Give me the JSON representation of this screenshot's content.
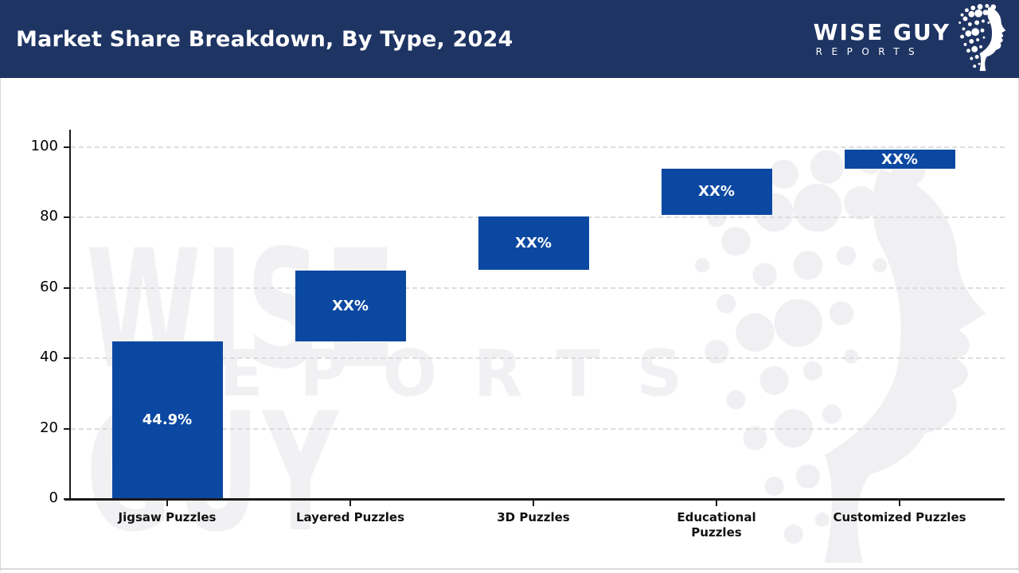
{
  "header": {
    "title": "Market Share Breakdown, By Type, 2024",
    "bg_color": "#1e3463",
    "logo": {
      "line1": "WISE GUY",
      "line2": "REPORTS"
    }
  },
  "watermark": {
    "line1": "WISE GUY",
    "line2": "REPORTS"
  },
  "chart_data": {
    "type": "bar",
    "subtype": "waterfall-floating-bars",
    "title": "Market Share Breakdown, By Type, 2024",
    "categories": [
      "Jigsaw Puzzles",
      "Layered Puzzles",
      "3D Puzzles",
      "Educational Puzzles",
      "Customized Puzzles"
    ],
    "tick_labels": [
      "Jigsaw Puzzles",
      "Layered Puzzles",
      "3D Puzzles",
      "Educational\nPuzzles",
      "Customized Puzzles"
    ],
    "bars": [
      {
        "category": "Jigsaw Puzzles",
        "start": 0,
        "end": 44.9,
        "label": "44.9%"
      },
      {
        "category": "Layered Puzzles",
        "start": 44.9,
        "end": 65.0,
        "label": "XX%"
      },
      {
        "category": "3D Puzzles",
        "start": 65.2,
        "end": 80.4,
        "label": "XX%"
      },
      {
        "category": "Educational Puzzles",
        "start": 80.8,
        "end": 93.9,
        "label": "XX%"
      },
      {
        "category": "Customized Puzzles",
        "start": 93.9,
        "end": 99.3,
        "label": "XX%"
      }
    ],
    "y_ticks": [
      0,
      20,
      40,
      60,
      80,
      100
    ],
    "ylim": [
      0,
      105
    ],
    "xlabel": "",
    "ylabel": "",
    "grid": "horizontal-dashed",
    "legend": "none",
    "bar_color": "#0b48a1",
    "label_color": "#ffffff"
  }
}
